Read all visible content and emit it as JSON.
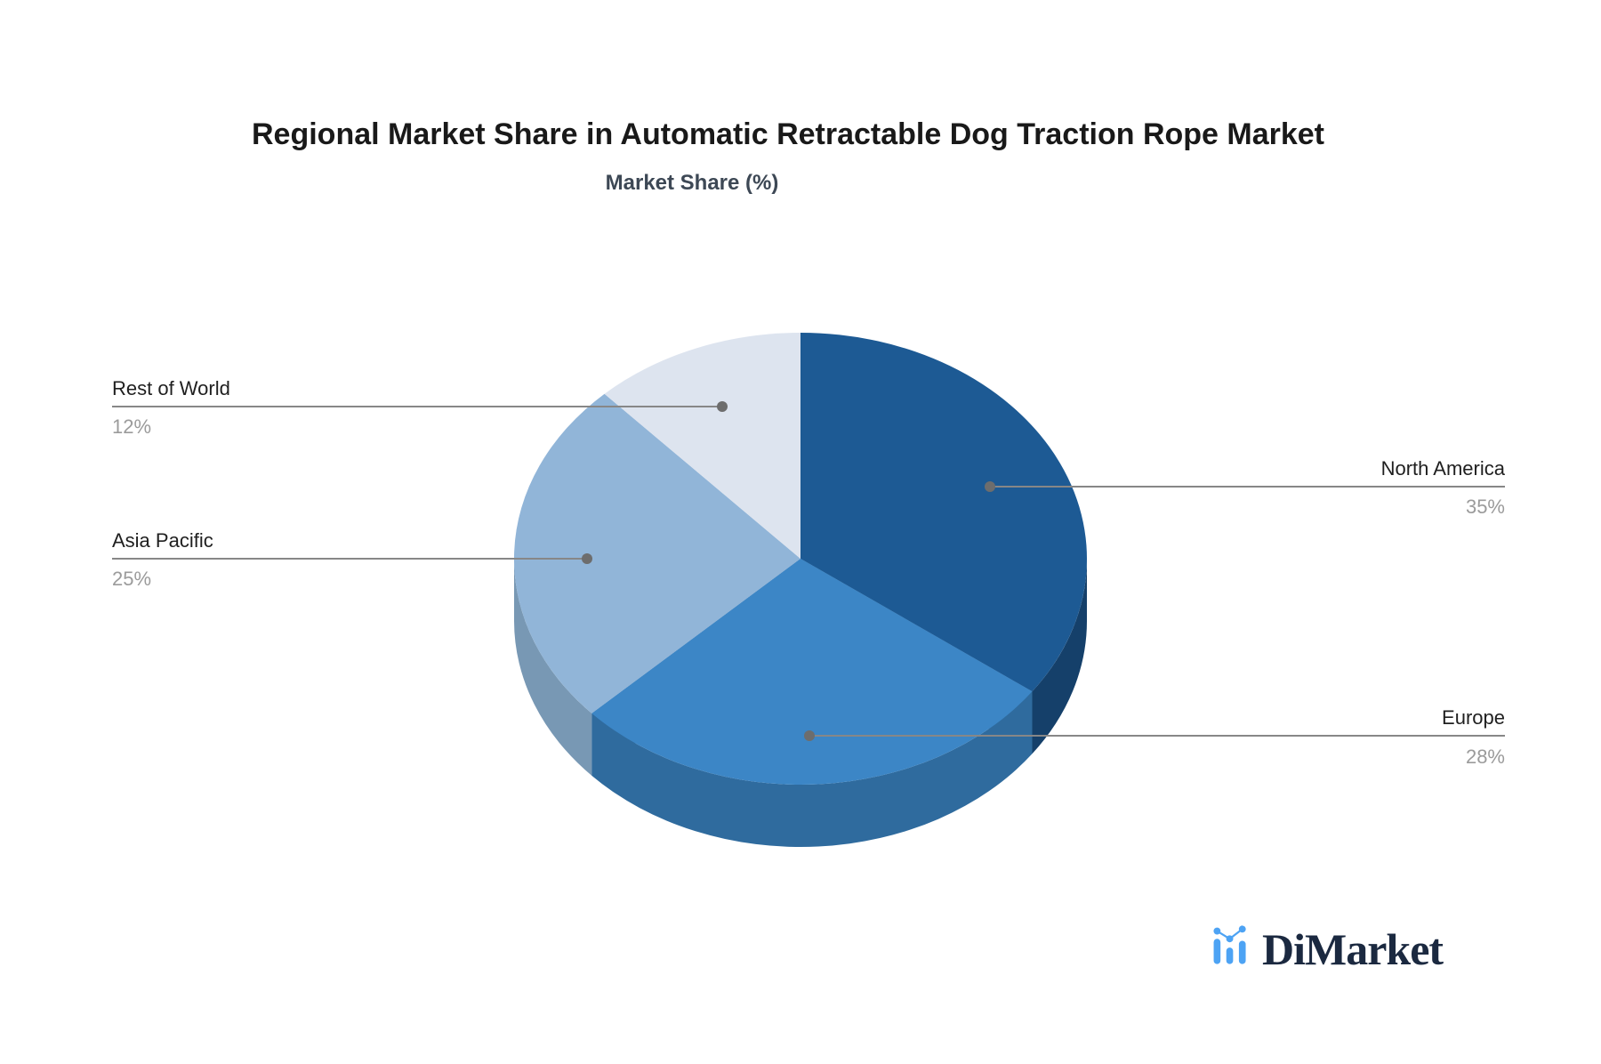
{
  "header": {
    "title": "Regional Market Share in Automatic Retractable Dog Traction Rope Market",
    "subtitle": "Market Share (%)"
  },
  "chart_data": {
    "type": "pie",
    "style": "3d",
    "title": "Regional Market Share in Automatic Retractable Dog Traction Rope Market",
    "subtitle": "Market Share (%)",
    "unit": "%",
    "start_angle_deg": 0,
    "direction": "clockwise",
    "legend_position": "callout-labels",
    "slices": [
      {
        "label": "North America",
        "value": 35,
        "value_text": "35%",
        "color": "#1d5a94",
        "side_color": "#15406a"
      },
      {
        "label": "Europe",
        "value": 28,
        "value_text": "28%",
        "color": "#3c86c6",
        "side_color": "#2f6b9e"
      },
      {
        "label": "Asia Pacific",
        "value": 25,
        "value_text": "25%",
        "color": "#91b5d8",
        "side_color": "#7898b4"
      },
      {
        "label": "Rest of World",
        "value": 12,
        "value_text": "12%",
        "color": "#dde4ef",
        "side_color": "#c3cdda"
      }
    ],
    "label_colors": {
      "name": "#1f1f1f",
      "value": "#9b9b9b",
      "line": "#878787",
      "dot": "#6d6d6d"
    }
  },
  "branding": {
    "logo_text": "DiMarket",
    "logo_icon": "bar-chart-icon",
    "logo_text_color": "#1b2940",
    "logo_icon_color": "#4da3f4"
  }
}
